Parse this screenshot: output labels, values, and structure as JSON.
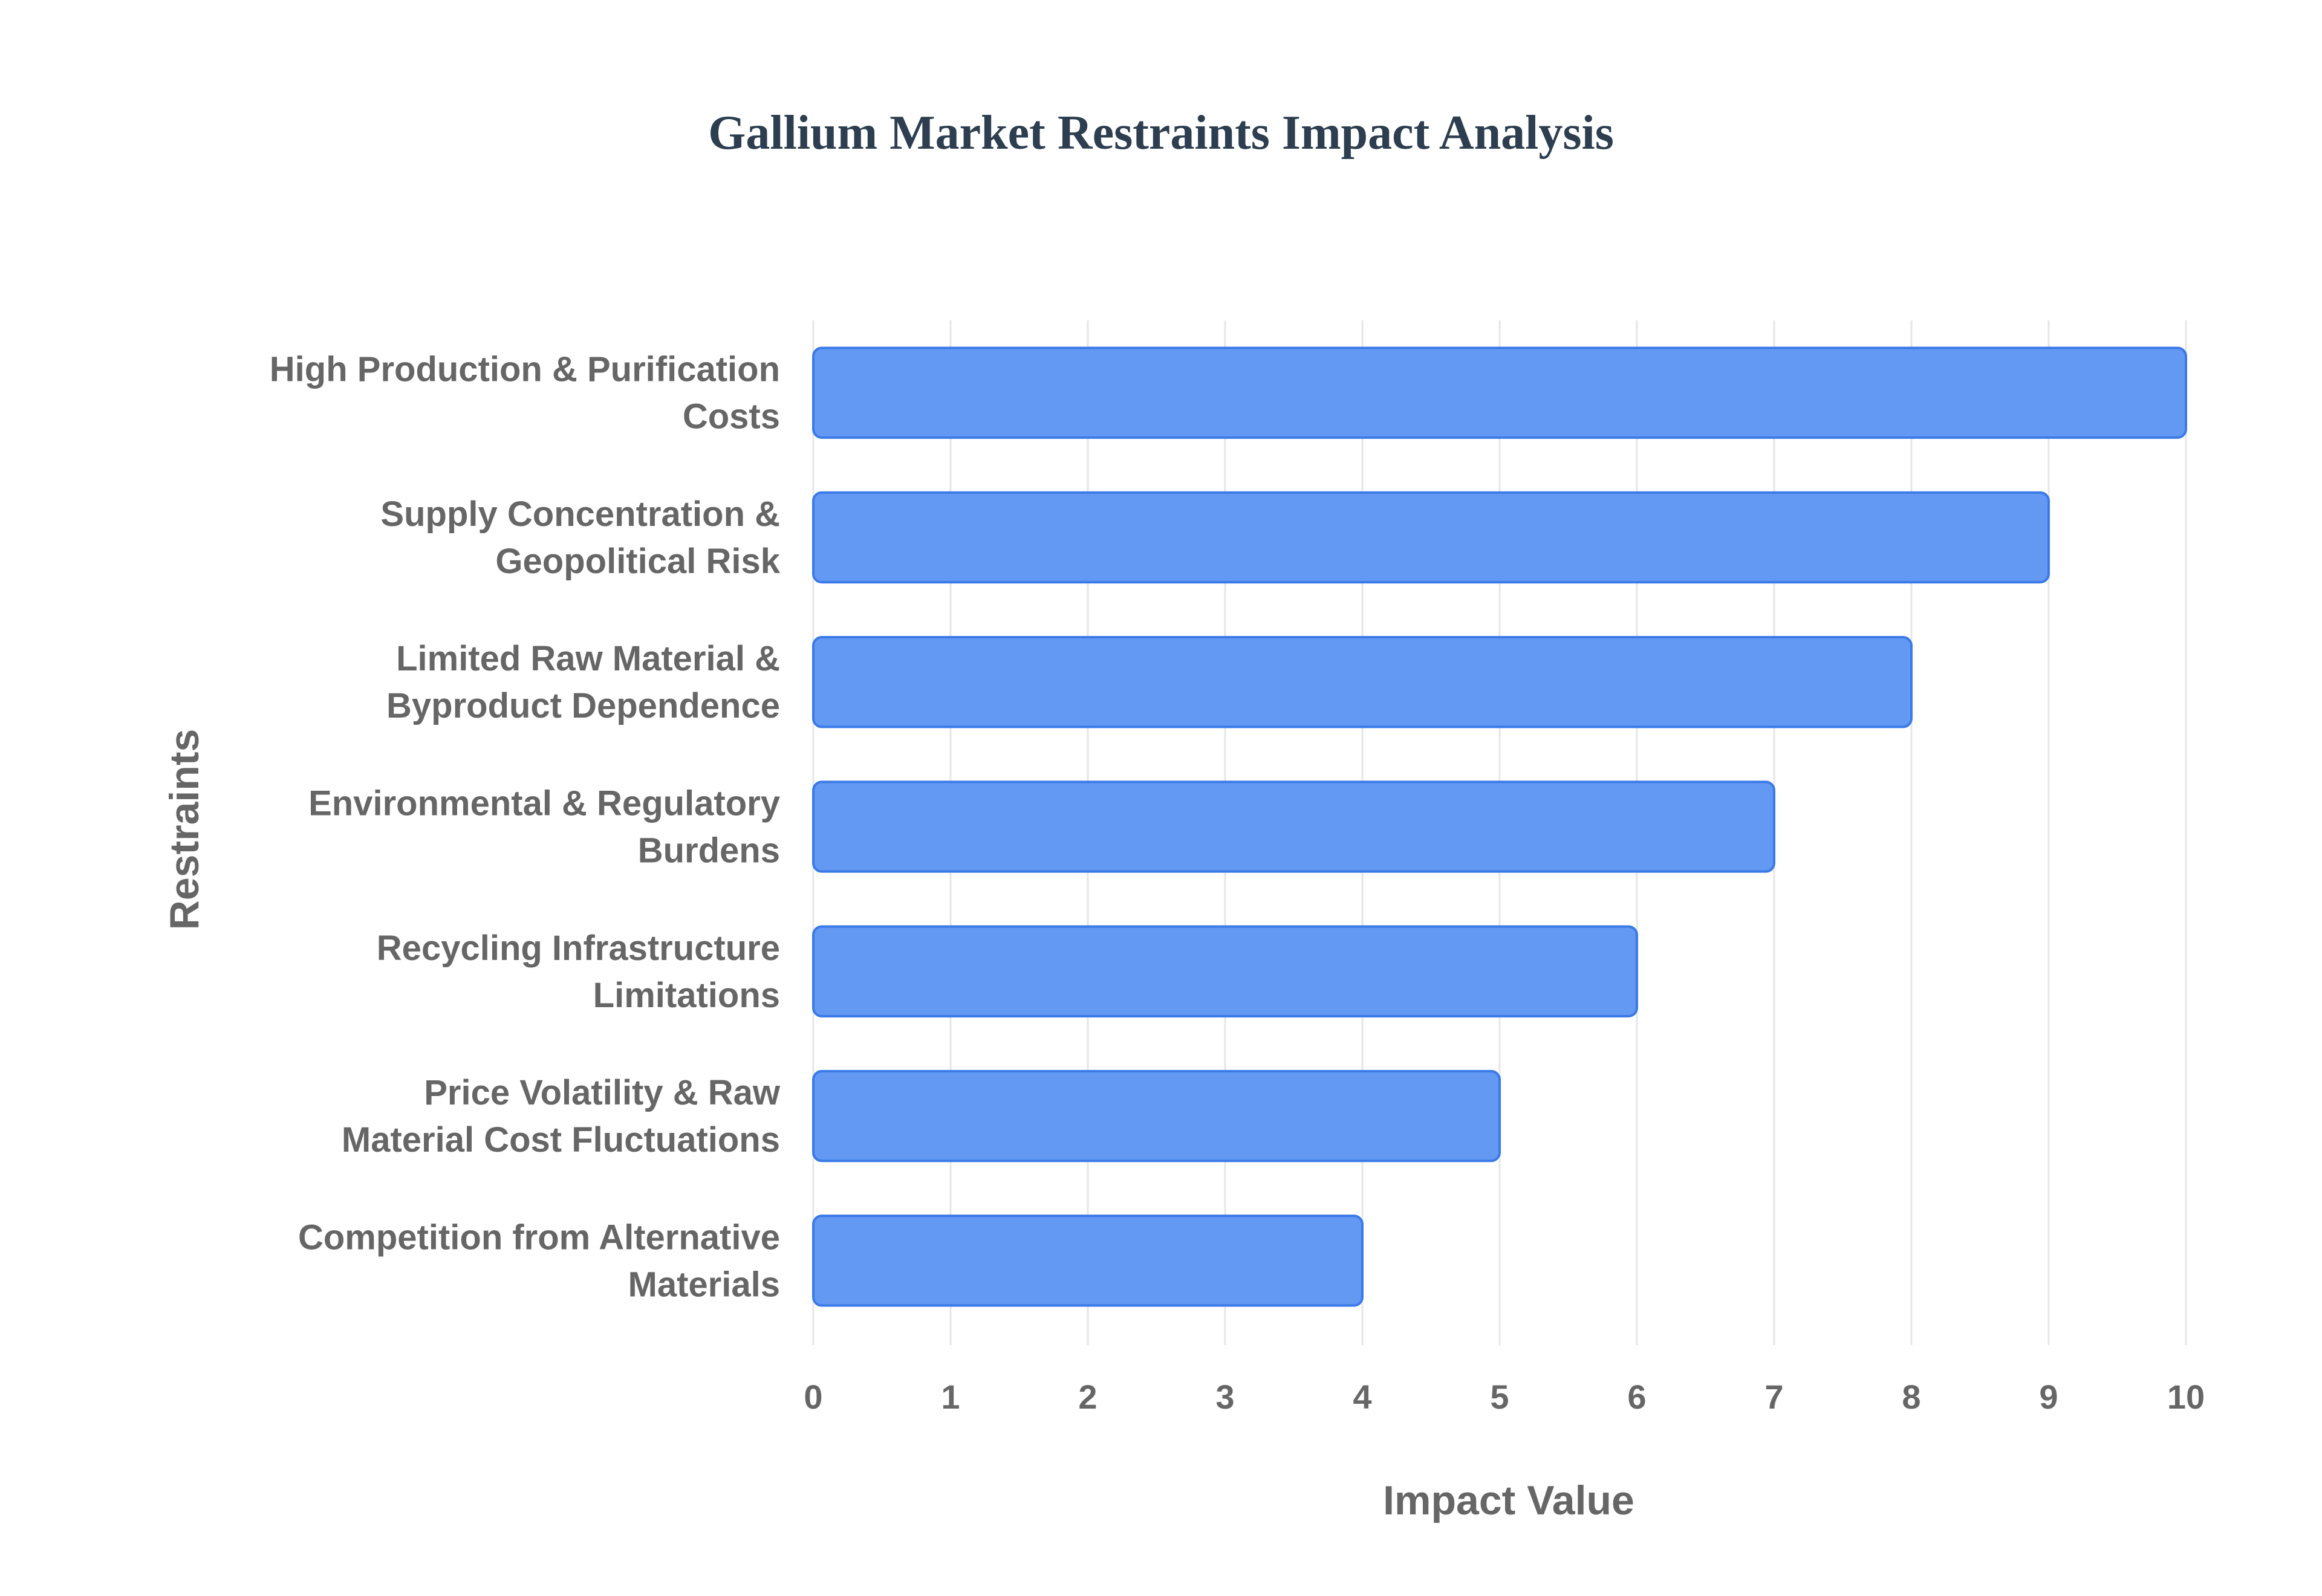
{
  "chart_data": {
    "type": "bar",
    "orientation": "horizontal",
    "title": "Gallium Market Restraints Impact Analysis",
    "xlabel": "Impact Value",
    "ylabel": "Restraints",
    "xlim": [
      0,
      10
    ],
    "xticks": [
      "0",
      "1",
      "2",
      "3",
      "4",
      "5",
      "6",
      "7",
      "8",
      "9",
      "10"
    ],
    "grid": true,
    "categories": [
      [
        "High Production & Purification",
        "Costs"
      ],
      [
        "Supply Concentration &",
        "Geopolitical Risk"
      ],
      [
        "Limited Raw Material &",
        "Byproduct Dependence"
      ],
      [
        "Environmental & Regulatory",
        "Burdens"
      ],
      [
        "Recycling Infrastructure",
        "Limitations"
      ],
      [
        "Price Volatility & Raw",
        "Material Cost Fluctuations"
      ],
      [
        "Competition from Alternative",
        "Materials"
      ]
    ],
    "values": [
      10,
      9,
      8,
      7,
      6,
      5,
      4
    ],
    "colors": {
      "bar_fill": "#6499f3",
      "bar_stroke": "#3a7ae8",
      "grid": "#e6e6e6",
      "text": "#666666",
      "title": "#2c3e50"
    }
  }
}
